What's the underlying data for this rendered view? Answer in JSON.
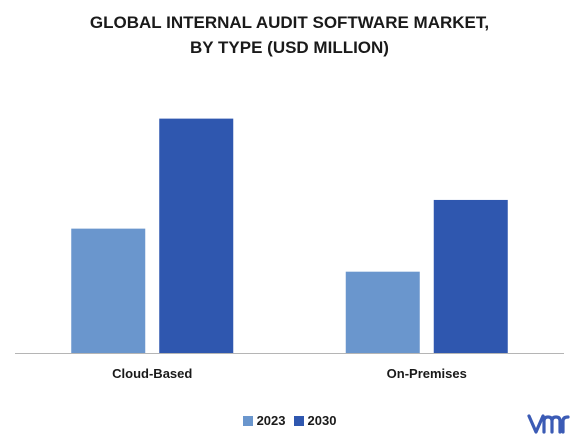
{
  "chart_data": {
    "type": "bar",
    "title_lines": [
      "GLOBAL INTERNAL AUDIT SOFTWARE MARKET,",
      "BY TYPE (USD MILLION)"
    ],
    "categories": [
      "Cloud-Based",
      "On-Premises"
    ],
    "series": [
      {
        "name": "2023",
        "color": "#6a96cd",
        "values": [
          13,
          8.5
        ]
      },
      {
        "name": "2030",
        "color": "#2f57af",
        "values": [
          24.5,
          16
        ]
      }
    ],
    "ylim": [
      0,
      30
    ],
    "grid": false,
    "legend_position": "bottom"
  },
  "colors": {
    "axis": "#b5b5b5",
    "brand": "#3b5bb5"
  },
  "logo": {
    "name": "vmr-logo-icon"
  }
}
